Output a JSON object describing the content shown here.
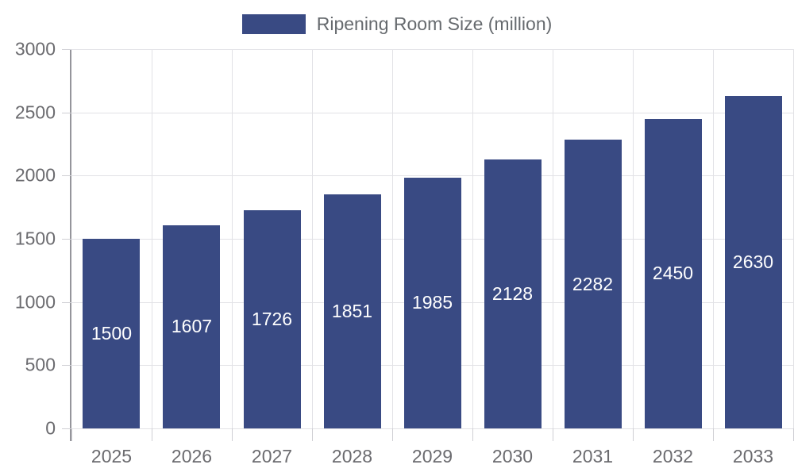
{
  "chart_data": {
    "type": "bar",
    "title": "",
    "legend": "Ripening Room Size (million)",
    "categories": [
      "2025",
      "2026",
      "2027",
      "2028",
      "2029",
      "2030",
      "2031",
      "2032",
      "2033"
    ],
    "values": [
      1500,
      1607,
      1726,
      1851,
      1985,
      2128,
      2282,
      2450,
      2630
    ],
    "xlabel": "",
    "ylabel": "",
    "ylim": [
      0,
      3000
    ],
    "yticks": [
      0,
      500,
      1000,
      1500,
      2000,
      2500,
      3000
    ],
    "grid": "on",
    "legend_position": "top-center",
    "bar_color": "#394a83",
    "bar_label_color": "#ffffff",
    "axis_label_color": "#6b6b6f",
    "gridline_color": "#e2e2e6",
    "axis_line_color": "#95959b",
    "background_color": "#ffffff"
  }
}
